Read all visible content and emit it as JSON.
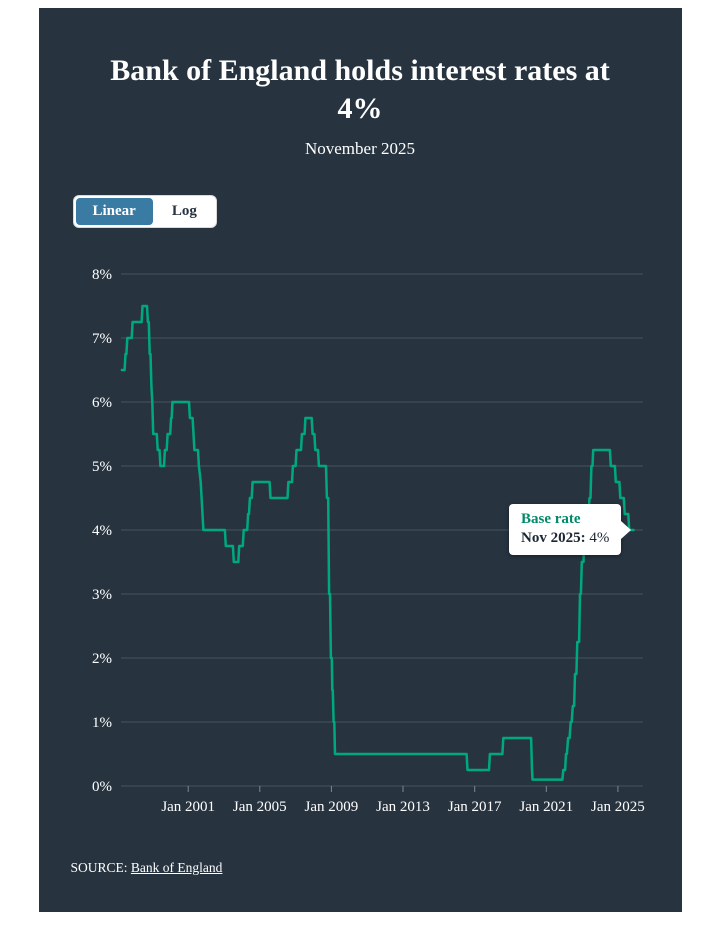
{
  "card": {
    "title": "Bank of England holds interest rates at 4%",
    "subtitle": "November 2025"
  },
  "toggle": {
    "linear": "Linear",
    "log": "Log"
  },
  "tooltip": {
    "title": "Base rate",
    "label": "Nov 2025:",
    "value": "4%"
  },
  "source": {
    "prefix": "SOURCE:",
    "link_text": "Bank of England"
  },
  "colors": {
    "card_background": "#273440",
    "line": "#00a87e",
    "grid": "#46525f",
    "active_toggle": "#3a7ba3",
    "tooltip_title": "#008a69",
    "text": "#ffffff"
  },
  "chart_data": {
    "type": "line",
    "title": "Bank of England holds interest rates at 4%",
    "subtitle": "November 2025",
    "xlabel": "",
    "ylabel": "",
    "grid": true,
    "legend": false,
    "ylim": [
      0,
      8
    ],
    "xlim": [
      1997.25,
      2026.4
    ],
    "y_tick_values": [
      0,
      1,
      2,
      3,
      4,
      5,
      6,
      7,
      8
    ],
    "y_ticks": [
      "0%",
      "1%",
      "2%",
      "3%",
      "4%",
      "5%",
      "6%",
      "7%",
      "8%"
    ],
    "x_tick_values": [
      2001,
      2005,
      2009,
      2013,
      2017,
      2021,
      2025
    ],
    "x_ticks": [
      "Jan 2001",
      "Jan 2005",
      "Jan 2009",
      "Jan 2013",
      "Jan 2017",
      "Jan 2021",
      "Jan 2025"
    ],
    "tooltip_anchor": [
      2025.87,
      4.0
    ],
    "series": [
      {
        "name": "Base rate",
        "points": [
          [
            1997.3,
            6.5
          ],
          [
            1997.45,
            6.5
          ],
          [
            1997.5,
            6.75
          ],
          [
            1997.55,
            6.75
          ],
          [
            1997.6,
            7.0
          ],
          [
            1997.85,
            7.0
          ],
          [
            1997.9,
            7.25
          ],
          [
            1998.4,
            7.25
          ],
          [
            1998.45,
            7.5
          ],
          [
            1998.7,
            7.5
          ],
          [
            1998.75,
            7.25
          ],
          [
            1998.8,
            7.25
          ],
          [
            1998.85,
            6.75
          ],
          [
            1998.9,
            6.75
          ],
          [
            1998.95,
            6.25
          ],
          [
            1999.0,
            6.0
          ],
          [
            1999.05,
            5.5
          ],
          [
            1999.25,
            5.5
          ],
          [
            1999.3,
            5.25
          ],
          [
            1999.4,
            5.25
          ],
          [
            1999.45,
            5.0
          ],
          [
            1999.65,
            5.0
          ],
          [
            1999.7,
            5.25
          ],
          [
            1999.8,
            5.25
          ],
          [
            1999.85,
            5.5
          ],
          [
            2000.0,
            5.5
          ],
          [
            2000.05,
            5.75
          ],
          [
            2000.08,
            5.75
          ],
          [
            2000.12,
            6.0
          ],
          [
            2001.05,
            6.0
          ],
          [
            2001.1,
            5.75
          ],
          [
            2001.25,
            5.75
          ],
          [
            2001.3,
            5.5
          ],
          [
            2001.35,
            5.25
          ],
          [
            2001.55,
            5.25
          ],
          [
            2001.6,
            5.0
          ],
          [
            2001.7,
            4.75
          ],
          [
            2001.75,
            4.5
          ],
          [
            2001.85,
            4.0
          ],
          [
            2003.05,
            4.0
          ],
          [
            2003.1,
            3.75
          ],
          [
            2003.5,
            3.75
          ],
          [
            2003.55,
            3.5
          ],
          [
            2003.8,
            3.5
          ],
          [
            2003.85,
            3.75
          ],
          [
            2004.05,
            3.75
          ],
          [
            2004.1,
            4.0
          ],
          [
            2004.3,
            4.0
          ],
          [
            2004.35,
            4.25
          ],
          [
            2004.4,
            4.25
          ],
          [
            2004.45,
            4.5
          ],
          [
            2004.55,
            4.5
          ],
          [
            2004.6,
            4.75
          ],
          [
            2005.55,
            4.75
          ],
          [
            2005.6,
            4.5
          ],
          [
            2006.55,
            4.5
          ],
          [
            2006.6,
            4.75
          ],
          [
            2006.8,
            4.75
          ],
          [
            2006.85,
            5.0
          ],
          [
            2007.0,
            5.0
          ],
          [
            2007.05,
            5.25
          ],
          [
            2007.3,
            5.25
          ],
          [
            2007.35,
            5.5
          ],
          [
            2007.5,
            5.5
          ],
          [
            2007.55,
            5.75
          ],
          [
            2007.9,
            5.75
          ],
          [
            2007.95,
            5.5
          ],
          [
            2008.05,
            5.5
          ],
          [
            2008.1,
            5.25
          ],
          [
            2008.25,
            5.25
          ],
          [
            2008.3,
            5.0
          ],
          [
            2008.7,
            5.0
          ],
          [
            2008.75,
            4.5
          ],
          [
            2008.82,
            4.5
          ],
          [
            2008.87,
            3.0
          ],
          [
            2008.92,
            3.0
          ],
          [
            2008.97,
            2.0
          ],
          [
            2009.02,
            2.0
          ],
          [
            2009.05,
            1.5
          ],
          [
            2009.08,
            1.5
          ],
          [
            2009.12,
            1.0
          ],
          [
            2009.16,
            1.0
          ],
          [
            2009.2,
            0.5
          ],
          [
            2016.55,
            0.5
          ],
          [
            2016.6,
            0.25
          ],
          [
            2017.8,
            0.25
          ],
          [
            2017.85,
            0.5
          ],
          [
            2018.55,
            0.5
          ],
          [
            2018.6,
            0.75
          ],
          [
            2020.15,
            0.75
          ],
          [
            2020.2,
            0.25
          ],
          [
            2020.23,
            0.1
          ],
          [
            2021.9,
            0.1
          ],
          [
            2021.95,
            0.25
          ],
          [
            2022.05,
            0.25
          ],
          [
            2022.1,
            0.5
          ],
          [
            2022.15,
            0.5
          ],
          [
            2022.22,
            0.75
          ],
          [
            2022.3,
            0.75
          ],
          [
            2022.36,
            1.0
          ],
          [
            2022.42,
            1.0
          ],
          [
            2022.48,
            1.25
          ],
          [
            2022.55,
            1.25
          ],
          [
            2022.6,
            1.75
          ],
          [
            2022.68,
            1.75
          ],
          [
            2022.73,
            2.25
          ],
          [
            2022.83,
            2.25
          ],
          [
            2022.88,
            3.0
          ],
          [
            2022.93,
            3.0
          ],
          [
            2022.98,
            3.5
          ],
          [
            2023.08,
            3.5
          ],
          [
            2023.13,
            4.0
          ],
          [
            2023.22,
            4.0
          ],
          [
            2023.27,
            4.25
          ],
          [
            2023.36,
            4.25
          ],
          [
            2023.41,
            4.5
          ],
          [
            2023.47,
            4.5
          ],
          [
            2023.52,
            5.0
          ],
          [
            2023.58,
            5.0
          ],
          [
            2023.62,
            5.25
          ],
          [
            2024.55,
            5.25
          ],
          [
            2024.6,
            5.0
          ],
          [
            2024.83,
            5.0
          ],
          [
            2024.88,
            4.75
          ],
          [
            2025.08,
            4.75
          ],
          [
            2025.13,
            4.5
          ],
          [
            2025.33,
            4.5
          ],
          [
            2025.38,
            4.25
          ],
          [
            2025.58,
            4.25
          ],
          [
            2025.63,
            4.0
          ],
          [
            2025.87,
            4.0
          ]
        ]
      }
    ]
  }
}
